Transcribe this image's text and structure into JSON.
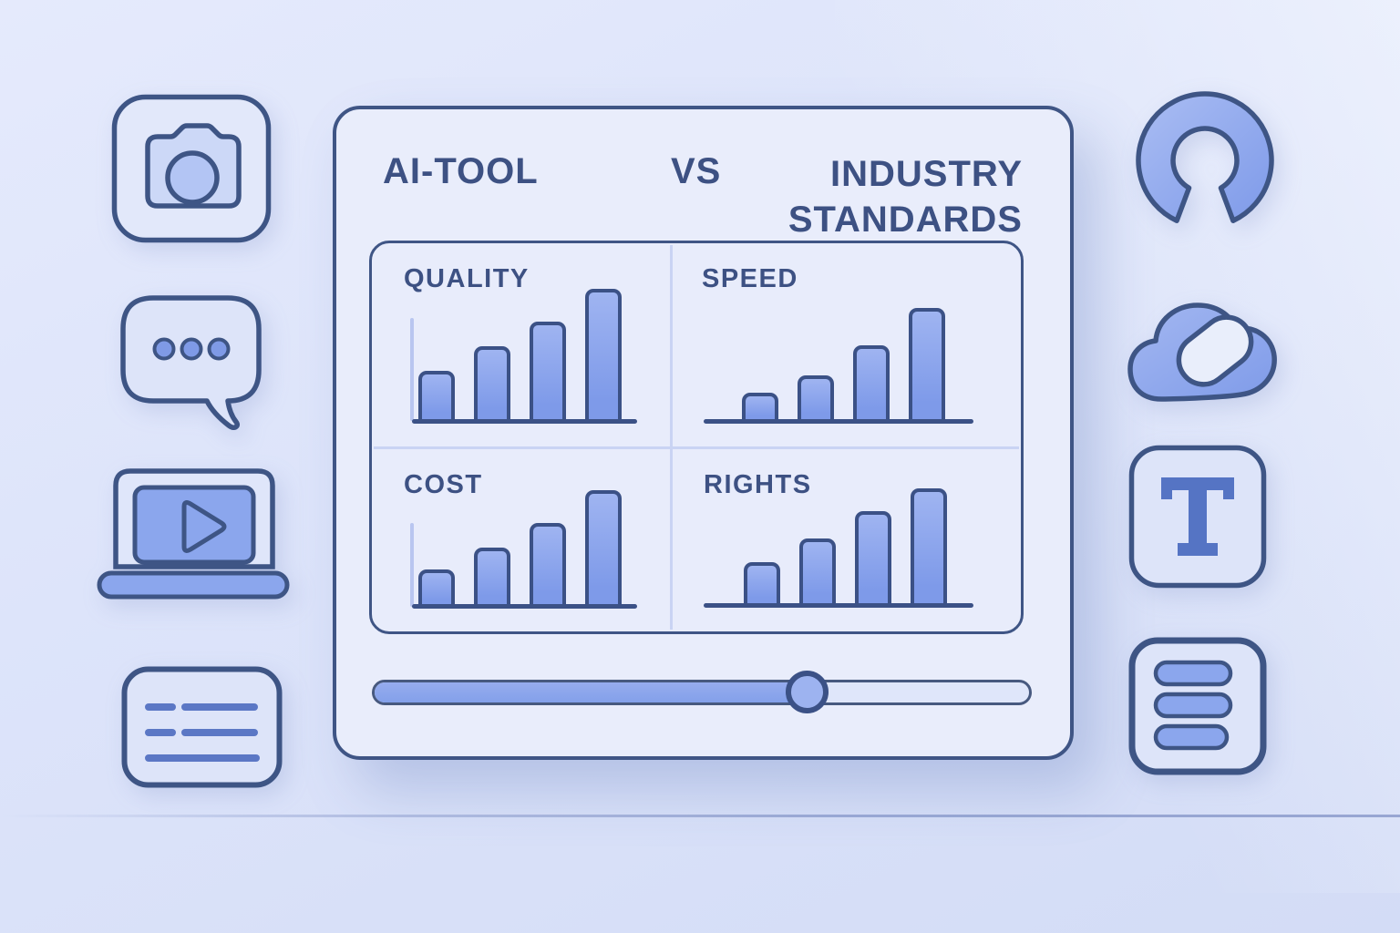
{
  "title": {
    "left": "AI-TOOL",
    "vs": "VS",
    "right_line1": "INDUSTRY",
    "right_line2": "STANDARDS"
  },
  "chart_data": [
    {
      "type": "bar",
      "title": "QUALITY",
      "values": [
        35,
        53,
        71,
        95
      ],
      "unit": "relative-height-percent",
      "ylim": [
        0,
        100
      ],
      "bars": 4,
      "has_y_axis": true,
      "grid": false,
      "legend": null
    },
    {
      "type": "bar",
      "title": "SPEED",
      "values": [
        19,
        32,
        54,
        81
      ],
      "unit": "relative-height-percent",
      "ylim": [
        0,
        100
      ],
      "bars": 4,
      "has_y_axis": false,
      "grid": false,
      "legend": null
    },
    {
      "type": "bar",
      "title": "COST",
      "values": [
        25,
        41,
        59,
        83
      ],
      "unit": "relative-height-percent",
      "ylim": [
        0,
        100
      ],
      "bars": 4,
      "has_y_axis": true,
      "grid": false,
      "legend": null
    },
    {
      "type": "bar",
      "title": "RIGHTS",
      "values": [
        30,
        47,
        67,
        84
      ],
      "unit": "relative-height-percent",
      "ylim": [
        0,
        100
      ],
      "bars": 4,
      "has_y_axis": false,
      "grid": false,
      "legend": null
    }
  ],
  "slider": {
    "value_percent": 66
  },
  "left_toolbar": {
    "icons": [
      "camera-icon",
      "chat-dots-icon",
      "video-laptop-icon",
      "notes-icon"
    ]
  },
  "right_toolbar": {
    "icons": [
      "open-source-icon",
      "cloud-icon",
      "text-tool-icon",
      "list-icon"
    ]
  },
  "colors": {
    "background": "#dbe2f9",
    "panel_bg": "#e9edfb",
    "outline": "#3e5585",
    "text": "#3d5183",
    "bar_fill": "#7f9ae9",
    "bar_border": "#3b5186",
    "divider": "#c9d3f3",
    "axis_light": "#b9c6f0",
    "slider_fill": "#8ba5ed",
    "slider_handle": "#9db3f0",
    "icon_light_fill": "#dde4f9",
    "icon_medium_fill": "#8ba6ed"
  }
}
